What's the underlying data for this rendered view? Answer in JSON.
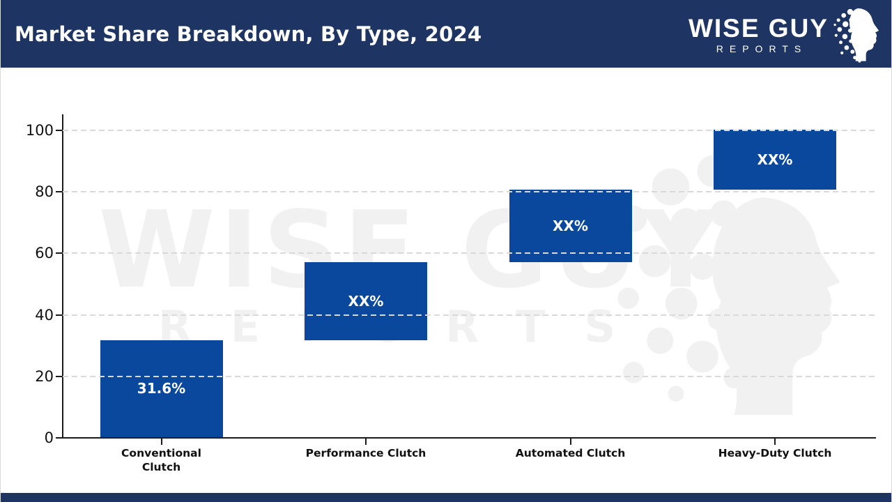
{
  "header": {
    "title": "Market Share Breakdown, By Type, 2024",
    "logo": {
      "line1": "WISE GUY",
      "line2": "REPORTS"
    }
  },
  "watermark": {
    "line1": "WISE GUY",
    "line2": "REPORTS"
  },
  "chart_data": {
    "type": "bar",
    "subtype": "waterfall",
    "title": "Market Share Breakdown, By Type, 2024",
    "categories": [
      "Conventional\nClutch",
      "Performance Clutch",
      "Automated Clutch",
      "Heavy-Duty Clutch"
    ],
    "segments": [
      {
        "category": "Conventional Clutch",
        "start": 0,
        "end": 31.6,
        "label": "31.6%"
      },
      {
        "category": "Performance Clutch",
        "start": 31.6,
        "end": 57,
        "label": "XX%"
      },
      {
        "category": "Automated Clutch",
        "start": 57,
        "end": 80.5,
        "label": "XX%"
      },
      {
        "category": "Heavy-Duty Clutch",
        "start": 80.5,
        "end": 100,
        "label": "XX%"
      }
    ],
    "xlabel": "",
    "ylabel": "",
    "ylim": [
      0,
      100
    ],
    "yticks": [
      0,
      20,
      40,
      60,
      80,
      100
    ],
    "grid": "horizontal-dashed",
    "legend": false,
    "colors": {
      "bar": "#0a489e",
      "header_navy": "#1e3462",
      "gridline": "#d9d9d9",
      "axis": "#1a1a1a",
      "bar_label_text": "#ffffff",
      "watermark": "#f1f1f1"
    }
  }
}
